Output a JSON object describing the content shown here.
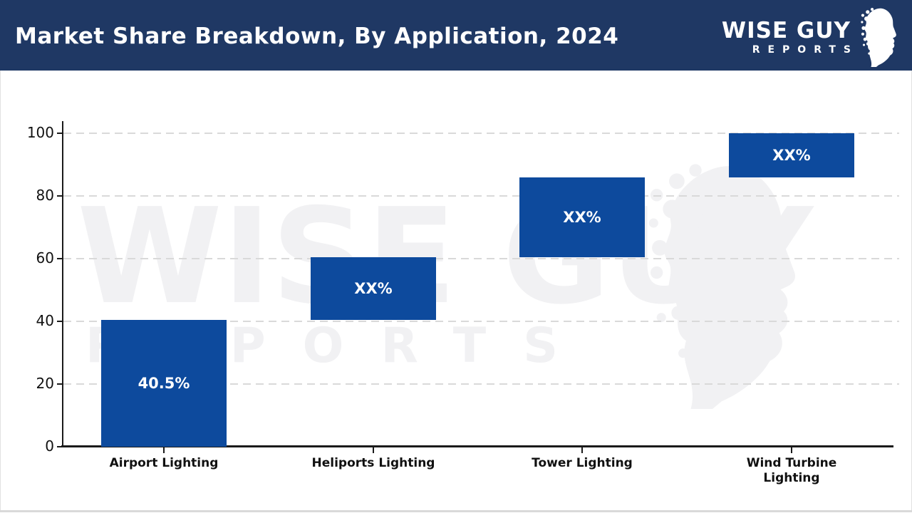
{
  "header": {
    "title": "Market Share Breakdown, By Application, 2024",
    "bg_color": "#1f3864",
    "logo": {
      "line1": "WISE GUY",
      "line2": "REPORTS"
    }
  },
  "watermark": {
    "line1": "WISE GUY",
    "line2": "REPORTS"
  },
  "chart_data": {
    "type": "bar",
    "subtype": "waterfall",
    "title": "Market Share Breakdown, By Application, 2024",
    "xlabel": "",
    "ylabel": "",
    "categories": [
      "Airport Lighting",
      "Heliports Lighting",
      "Tower Lighting",
      "Wind Turbine Lighting"
    ],
    "category_display": [
      "Airport Lighting",
      "Heliports Lighting",
      "Tower Lighting",
      "Wind Turbine\nLighting"
    ],
    "segments": [
      {
        "category": "Airport Lighting",
        "start": 0,
        "end": 40.5,
        "value_label": "40.5%"
      },
      {
        "category": "Heliports Lighting",
        "start": 40.5,
        "end": 60.5,
        "value_label": "XX%"
      },
      {
        "category": "Tower Lighting",
        "start": 60.5,
        "end": 86,
        "value_label": "XX%"
      },
      {
        "category": "Wind Turbine Lighting",
        "start": 86,
        "end": 100,
        "value_label": "XX%"
      }
    ],
    "yticks": [
      0,
      20,
      40,
      60,
      80,
      100
    ],
    "ylim": [
      0,
      104
    ],
    "grid": "horizontal dashed",
    "legend": "none",
    "bar_color": "#0d4a9d",
    "bar_label_color": "#ffffff",
    "axis_color": "#1a1a1a",
    "grid_color": "#d9d9d9"
  }
}
